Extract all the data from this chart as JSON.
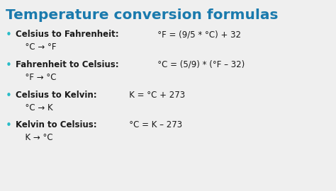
{
  "title": "Temperature conversion formulas",
  "title_color": "#1a7aad",
  "title_fontsize": 14.5,
  "background_color": "#efefef",
  "bullet_color": "#29bcc8",
  "text_color": "#1a1a1a",
  "arrow_color": "#1a1a1a",
  "items": [
    {
      "label": "Celsius to Fahrenheit:",
      "formula": "   °F = (9/5 * °C) + 32",
      "arrow_line": "  °C → °F"
    },
    {
      "label": "Fahrenheit to Celsius:",
      "formula": "   °C = (5/9) * (°F – 32)",
      "arrow_line": "  °F → °C"
    },
    {
      "label": "Celsius to Kelvin:",
      "formula": "   K = °C + 273",
      "arrow_line": "  °C → K"
    },
    {
      "label": "Kelvin to Celsius:",
      "formula": "   °C = K – 273",
      "arrow_line": "  K → °C"
    }
  ],
  "label_fontsize": 8.5,
  "formula_fontsize": 8.5,
  "arrow_fontsize": 8.5,
  "bullet_fontsize": 11
}
